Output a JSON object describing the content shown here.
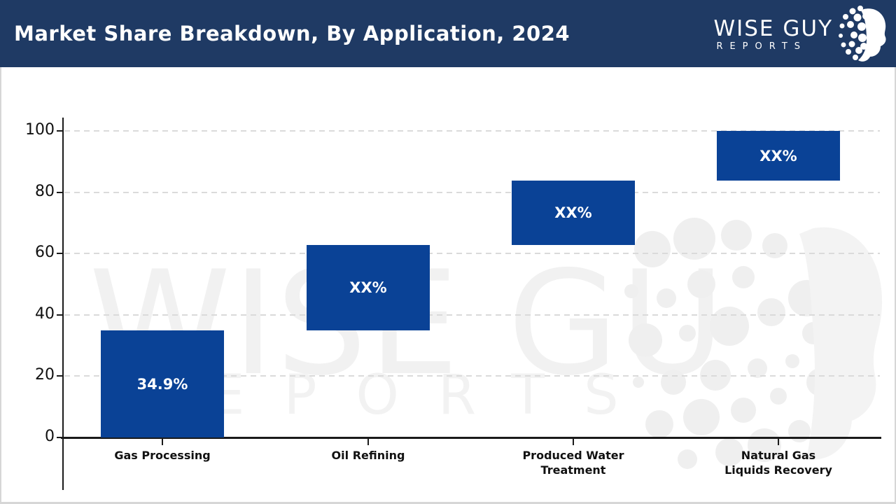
{
  "header": {
    "title": "Market Share Breakdown, By Application, 2024",
    "logo_line1": "WISE GUY",
    "logo_line2": "REPORTS"
  },
  "watermark": {
    "line1": "WISE GU",
    "line2": "REPORTS"
  },
  "chart_data": {
    "type": "bar",
    "subtype": "floating_segment_bars",
    "title": "Market Share Breakdown, By Application, 2024",
    "categories": [
      "Gas Processing",
      "Oil Refining",
      "Produced Water Treatment",
      "Natural Gas Liquids Recovery"
    ],
    "category_label_lines": [
      [
        "Gas Processing"
      ],
      [
        "Oil Refining"
      ],
      [
        "Produced Water",
        "Treatment"
      ],
      [
        "Natural Gas",
        "Liquids Recovery"
      ]
    ],
    "segments": [
      {
        "category": "Gas Processing",
        "start": 0,
        "end": 34.9,
        "label": "34.9%"
      },
      {
        "category": "Oil Refining",
        "start": 34.9,
        "end": 62.7,
        "label": "XX%"
      },
      {
        "category": "Produced Water Treatment",
        "start": 62.7,
        "end": 83.7,
        "label": "XX%"
      },
      {
        "category": "Natural Gas Liquids Recovery",
        "start": 83.7,
        "end": 100,
        "label": "XX%"
      }
    ],
    "ylim": [
      0,
      100
    ],
    "yticks": [
      0,
      20,
      40,
      60,
      80,
      100
    ],
    "xlabel": "",
    "ylabel": "",
    "legend": "none",
    "grid": {
      "horizontal": true,
      "style": "dashed",
      "color": "#dadada"
    },
    "colors": {
      "bar": "#0a4296",
      "bar_label": "#ffffff",
      "axis": "#1a1a1a",
      "header_bg": "#1f3a64",
      "header_text": "#ffffff",
      "watermark": "#f1f1f1"
    }
  }
}
